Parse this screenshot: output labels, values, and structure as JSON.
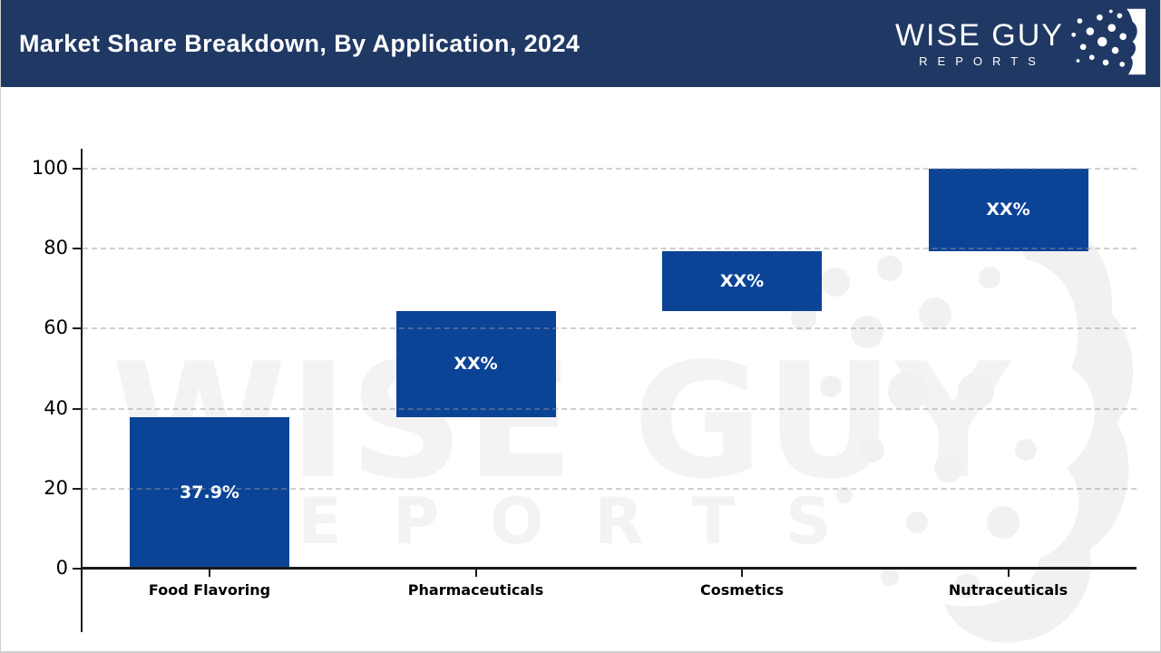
{
  "header": {
    "title": "Market Share Breakdown, By Application, 2024",
    "logo": {
      "line1": "WISE GUY",
      "line2": "REPORTS"
    }
  },
  "watermark": {
    "line1": "WISE GUY",
    "line2": "REPORTS"
  },
  "chart_data": {
    "type": "bar",
    "subtype": "floating-waterfall",
    "title": "Market Share Breakdown, By Application, 2024",
    "xlabel": "",
    "ylabel": "",
    "ylim": [
      0,
      105
    ],
    "yticks": [
      0,
      20,
      40,
      60,
      80,
      100
    ],
    "grid": "horizontal dashed",
    "legend": "none",
    "bar_color": "#0b4397",
    "categories": [
      "Food Flavoring",
      "Pharmaceuticals",
      "Cosmetics",
      "Nutraceuticals"
    ],
    "segments": [
      {
        "category": "Food Flavoring",
        "start": 0,
        "end": 37.9,
        "label": "37.9%"
      },
      {
        "category": "Pharmaceuticals",
        "start": 37.9,
        "end": 64.5,
        "label": "XX%"
      },
      {
        "category": "Cosmetics",
        "start": 64.5,
        "end": 79.4,
        "label": "XX%"
      },
      {
        "category": "Nutraceuticals",
        "start": 79.4,
        "end": 100,
        "label": "XX%"
      }
    ]
  },
  "colors": {
    "header_bg": "#203864",
    "bar": "#0b4397",
    "axis": "#1a1a1a",
    "gridline": "#c9c9c9",
    "watermark": "#f3f3f3",
    "text": "#000000"
  }
}
